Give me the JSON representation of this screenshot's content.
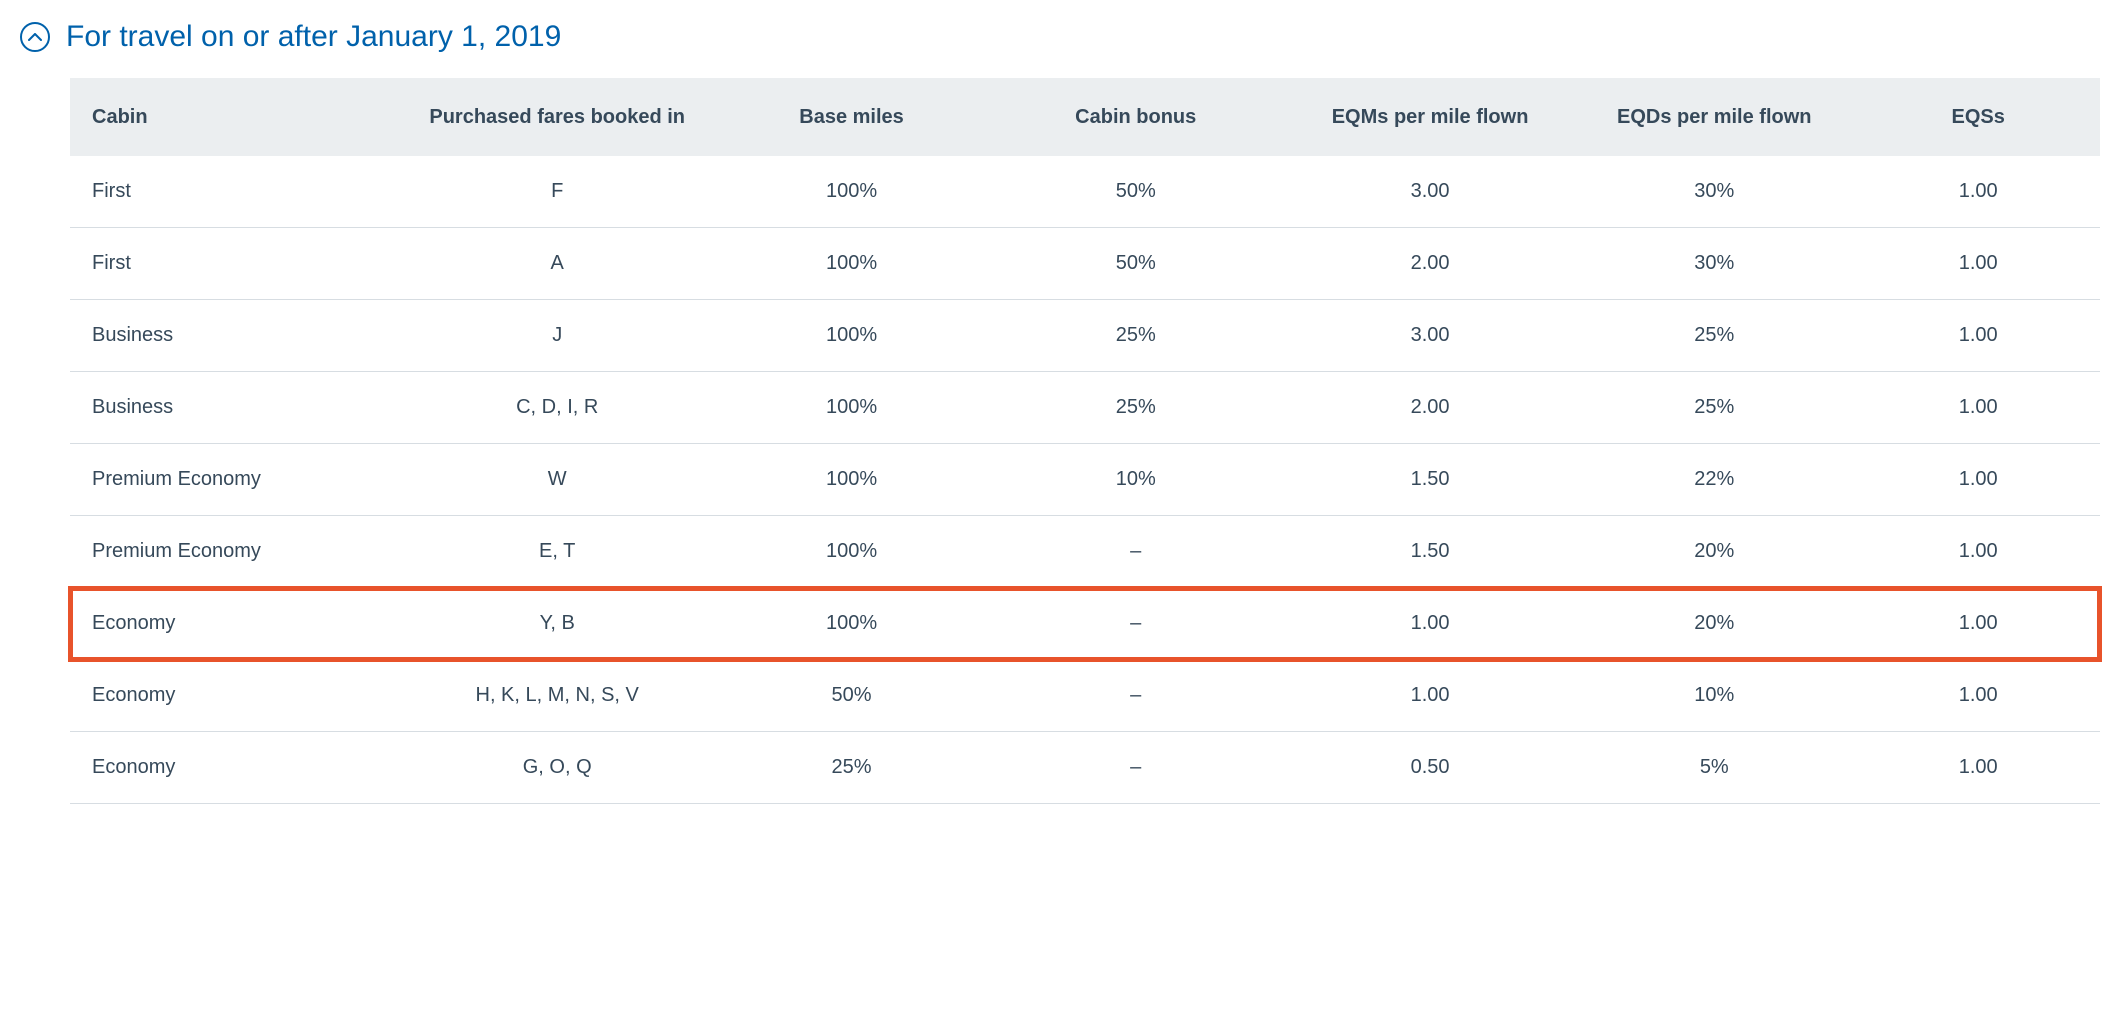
{
  "header": {
    "title": "For travel on or after January 1, 2019"
  },
  "colors": {
    "link": "#0061ab",
    "text": "#36495a",
    "header_bg": "#ebeef0",
    "row_border": "#d7dde2",
    "highlight_border": "#e8532b",
    "background": "#ffffff"
  },
  "table": {
    "columns": [
      "Cabin",
      "Purchased fares booked in",
      "Base miles",
      "Cabin bonus",
      "EQMs per mile flown",
      "EQDs per mile flown",
      "EQSs"
    ],
    "rows": [
      {
        "cells": [
          "First",
          "F",
          "100%",
          "50%",
          "3.00",
          "30%",
          "1.00"
        ],
        "highlight": false
      },
      {
        "cells": [
          "First",
          "A",
          "100%",
          "50%",
          "2.00",
          "30%",
          "1.00"
        ],
        "highlight": false
      },
      {
        "cells": [
          "Business",
          "J",
          "100%",
          "25%",
          "3.00",
          "25%",
          "1.00"
        ],
        "highlight": false
      },
      {
        "cells": [
          "Business",
          "C, D, I, R",
          "100%",
          "25%",
          "2.00",
          "25%",
          "1.00"
        ],
        "highlight": false
      },
      {
        "cells": [
          "Premium Economy",
          "W",
          "100%",
          "10%",
          "1.50",
          "22%",
          "1.00"
        ],
        "highlight": false
      },
      {
        "cells": [
          "Premium Economy",
          "E, T",
          "100%",
          "–",
          "1.50",
          "20%",
          "1.00"
        ],
        "highlight": false
      },
      {
        "cells": [
          "Economy",
          "Y, B",
          "100%",
          "–",
          "1.00",
          "20%",
          "1.00"
        ],
        "highlight": true
      },
      {
        "cells": [
          "Economy",
          "H, K, L, M, N, S, V",
          "50%",
          "–",
          "1.00",
          "10%",
          "1.00"
        ],
        "highlight": false
      },
      {
        "cells": [
          "Economy",
          "G, O, Q",
          "25%",
          "–",
          "0.50",
          "5%",
          "1.00"
        ],
        "highlight": false
      }
    ]
  },
  "style": {
    "header_fontsize": 20,
    "body_fontsize": 20,
    "title_fontsize": 30,
    "highlight_outline_width": 5
  }
}
